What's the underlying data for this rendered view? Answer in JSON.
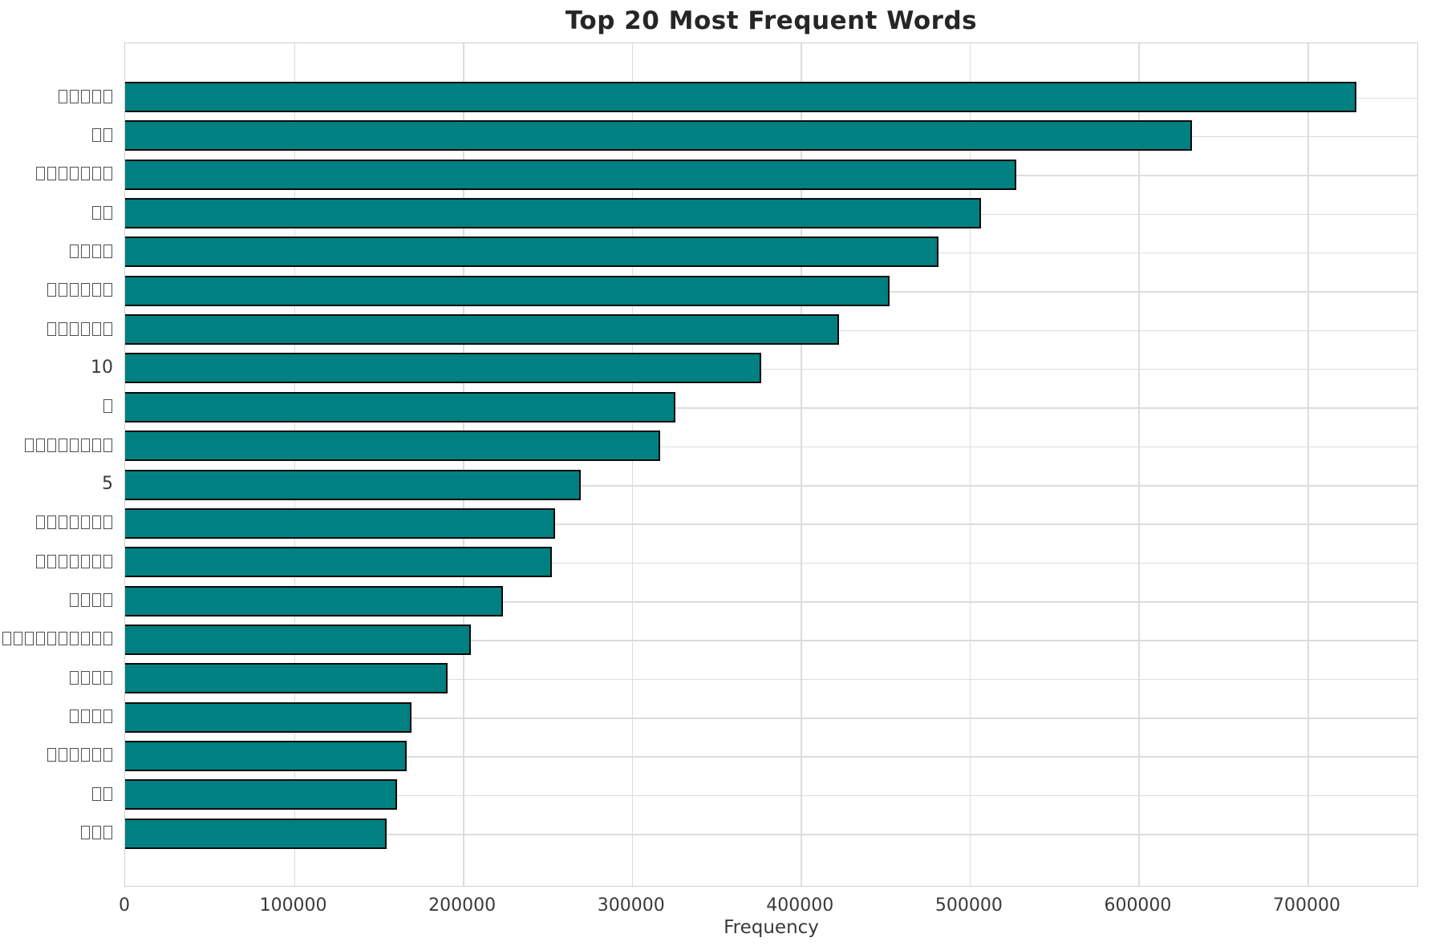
{
  "chart_data": {
    "type": "bar",
    "orientation": "horizontal",
    "title": "Top 20 Most Frequent Words",
    "xlabel": "Frequency",
    "ylabel": "",
    "xlim": [
      0,
      766000
    ],
    "grid": true,
    "legend": null,
    "bar_color": "#008080",
    "bar_edge_color": "#0a0a0a",
    "gridline_color": "#dcdcdc",
    "x_ticks": [
      0,
      100000,
      200000,
      300000,
      400000,
      500000,
      600000,
      700000
    ],
    "x_tick_labels": [
      "0",
      "100000",
      "200000",
      "300000",
      "400000",
      "500000",
      "600000",
      "700000"
    ],
    "categories": [
      "□□□□□",
      "□□",
      "□□□□□□□",
      "□□",
      "□□□□",
      "□□□□□□",
      "□□□□□□",
      "10",
      "□",
      "□□□□□□□□",
      "5",
      "□□□□□□□",
      "□□□□□□□",
      "□□□□",
      "□□□□□□□□□□",
      "□□□□",
      "□□□□",
      "□□□□□□",
      "□□",
      "□□□"
    ],
    "values": [
      729000,
      632000,
      528000,
      507000,
      482000,
      453000,
      423000,
      377000,
      326000,
      317000,
      270000,
      255000,
      253000,
      224000,
      205000,
      191000,
      170000,
      167000,
      161000,
      155000
    ]
  }
}
